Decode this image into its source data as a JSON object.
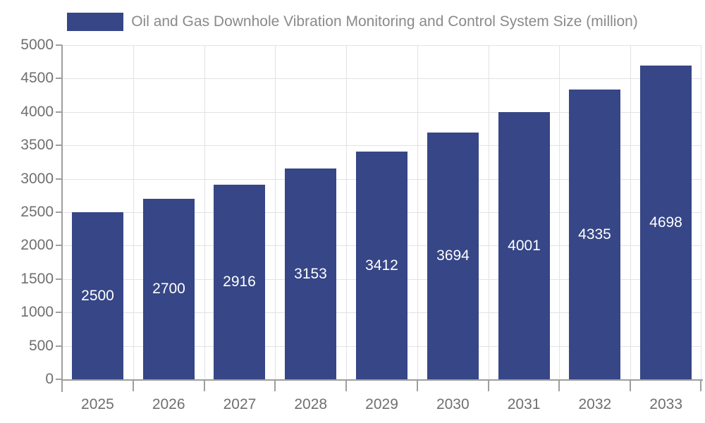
{
  "legend": {
    "label": "Oil and Gas Downhole Vibration Monitoring and Control System Size (million)"
  },
  "chart_data": {
    "type": "bar",
    "title": "Oil and Gas Downhole Vibration Monitoring and Control System Size (million)",
    "categories": [
      "2025",
      "2026",
      "2027",
      "2028",
      "2029",
      "2030",
      "2031",
      "2032",
      "2033"
    ],
    "values": [
      2500,
      2700,
      2916,
      3153,
      3412,
      3694,
      4001,
      4335,
      4698
    ],
    "xlabel": "",
    "ylabel": "",
    "ylim": [
      0,
      5000
    ],
    "yticks": [
      0,
      500,
      1000,
      1500,
      2000,
      2500,
      3000,
      3500,
      4000,
      4500,
      5000
    ],
    "grid": true,
    "legend_position": "top-center",
    "value_labels": "inside-center",
    "colors": {
      "bar_fill": "#364686",
      "value_label_text": "#ffffff",
      "grid_line": "#e2e2e6",
      "axis_line": "#9e9e9e",
      "tick_mark": "#9e9e9e",
      "tick_label_text": "#6f6f6f",
      "legend_label_text": "#8a8a8a",
      "background": "#ffffff"
    }
  }
}
